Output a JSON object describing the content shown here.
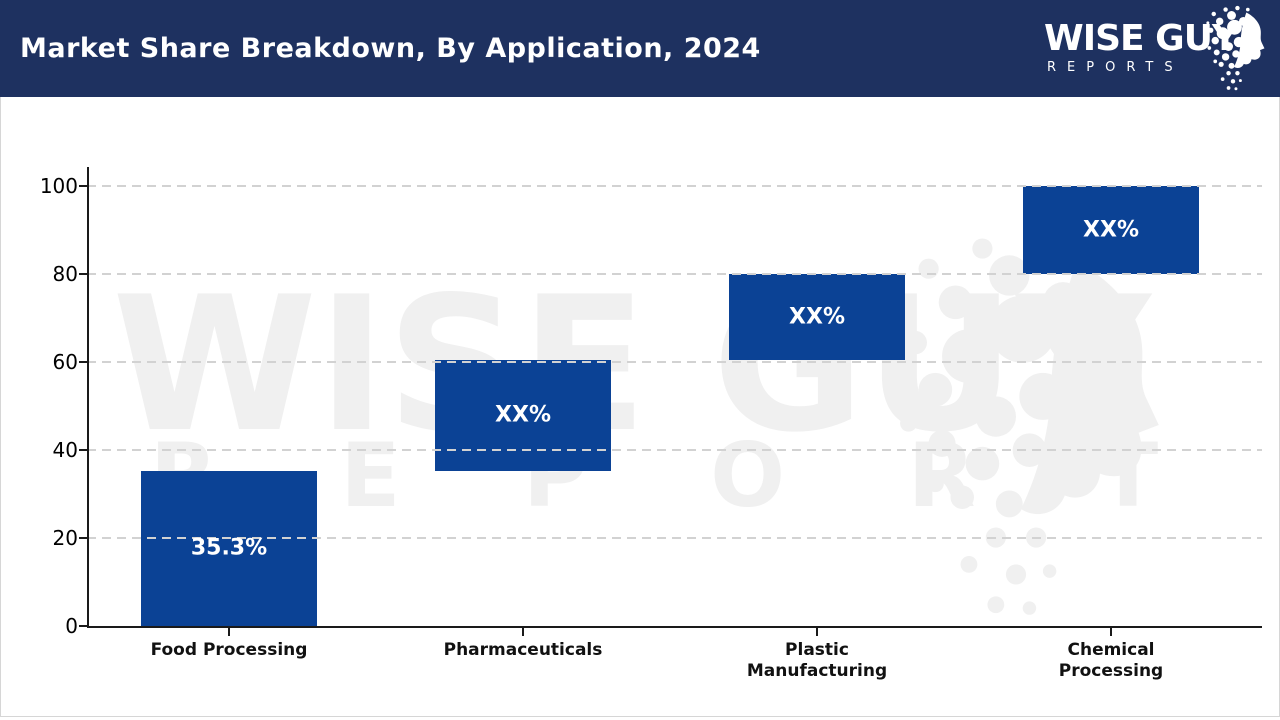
{
  "header": {
    "title": "Market Share Breakdown, By Application, 2024",
    "logo": {
      "line1": "WISE GUY",
      "line2": "REPORTS"
    }
  },
  "watermark": {
    "line1": "WISE GUY",
    "line2": "R E P O R T S"
  },
  "colors": {
    "header_bg": "#1e3160",
    "bar": "#0b4295",
    "bar_label": "#ffffff",
    "gridline": "#d2d2d2",
    "axis": "#1a1a1a",
    "watermark": "#f0f0f0",
    "card_border": "#d6d6d6"
  },
  "chart_data": {
    "type": "bar",
    "subtype": "waterfall",
    "title": "Market Share Breakdown, By Application, 2024",
    "xlabel": "",
    "ylabel": "",
    "ylim": [
      0,
      100
    ],
    "yticks": [
      0,
      20,
      40,
      60,
      80,
      100
    ],
    "grid": "horizontal-dashed",
    "legend": "none",
    "categories": [
      "Food Processing",
      "Pharmaceuticals",
      "Plastic Manufacturing",
      "Chemical Processing"
    ],
    "segments": [
      {
        "category": "Food Processing",
        "category_lines": "Food Processing",
        "start": 0,
        "end": 35.3,
        "label": "35.3%"
      },
      {
        "category": "Pharmaceuticals",
        "category_lines": "Pharmaceuticals",
        "start": 35.3,
        "end": 60.4,
        "label": "XX%"
      },
      {
        "category": "Plastic Manufacturing",
        "category_lines": "Plastic\nManufacturing",
        "start": 60.4,
        "end": 80,
        "label": "XX%"
      },
      {
        "category": "Chemical Processing",
        "category_lines": "Chemical\nProcessing",
        "start": 80,
        "end": 100,
        "label": "XX%"
      }
    ]
  }
}
